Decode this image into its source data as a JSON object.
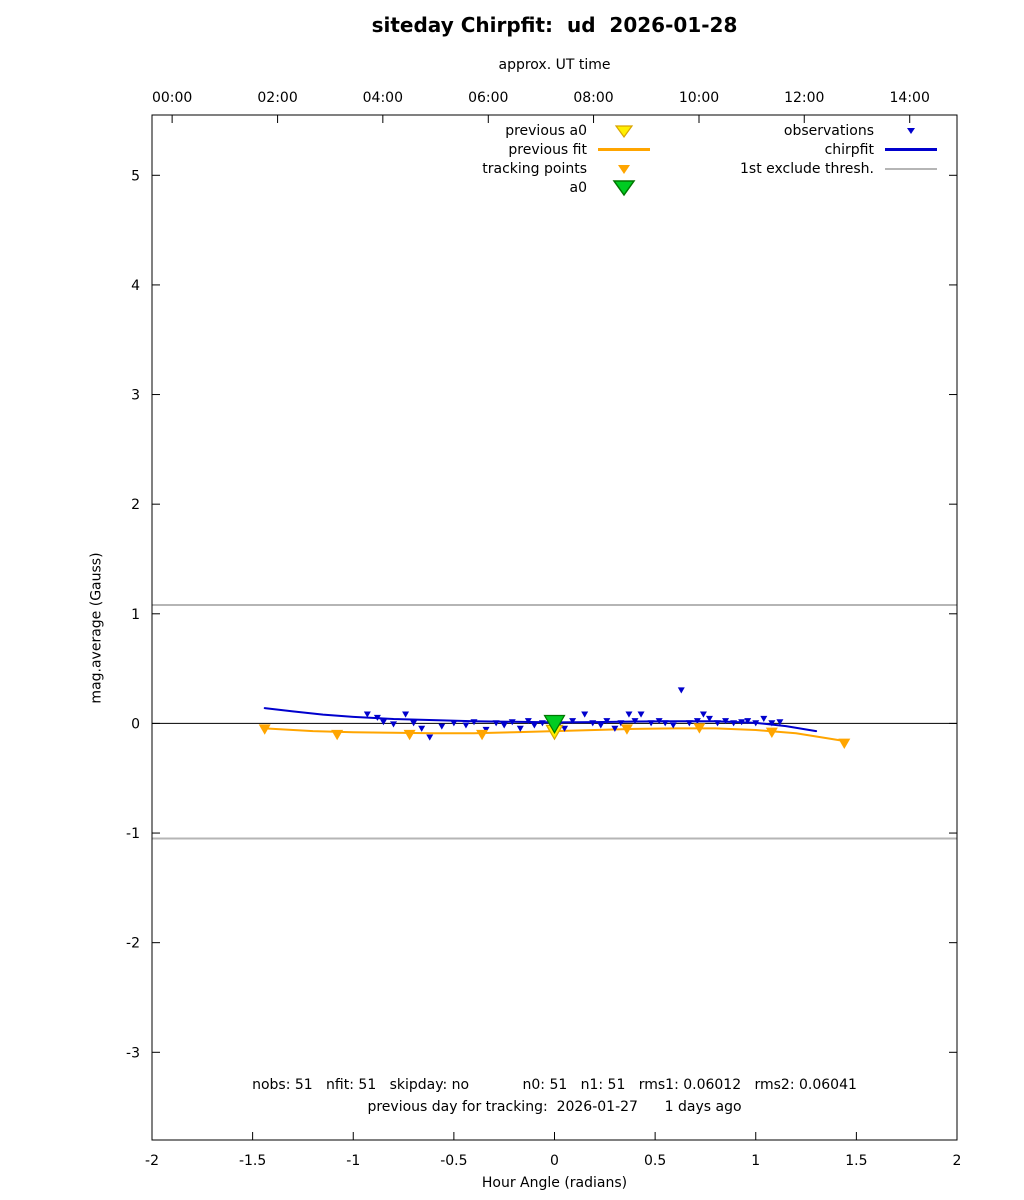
{
  "title": "siteday Chirpfit:  ud  2026-01-28",
  "colors": {
    "observations": "#0000cd",
    "chirpfit": "#0000cd",
    "previous_fit": "#ffa500",
    "tracking_points": "#ffa500",
    "previous_a0_fill": "#ffef00",
    "previous_a0_edge": "#d9a400",
    "a0_fill": "#00cc22",
    "a0_edge": "#007700",
    "exclude_threshold": "#b5b5b5",
    "axis": "#000000",
    "background": "#ffffff"
  },
  "legend": {
    "left": [
      {
        "label": "previous a0"
      },
      {
        "label": "previous fit"
      },
      {
        "label": "tracking points"
      },
      {
        "label": "a0"
      }
    ],
    "right": [
      {
        "label": "observations"
      },
      {
        "label": "chirpfit"
      },
      {
        "label": "1st exclude thresh."
      }
    ]
  },
  "footer": {
    "stats": "nobs: 51   nfit: 51   skipday: no            n0: 51   n1: 51   rms1: 0.06012   rms2: 0.06041",
    "previous_day": "previous day for tracking:  2026-01-27      1 days ago",
    "values": {
      "nobs": 51,
      "nfit": 51,
      "skipday": "no",
      "n0": 51,
      "n1": 51,
      "rms1": 0.06012,
      "rms2": 0.06041,
      "previous_day_date": "2026-01-27",
      "days_ago": "1 days ago"
    }
  },
  "chart_data": {
    "type": "scatter",
    "title": "siteday Chirpfit: ud 2026-01-28",
    "xlabel": "Hour Angle (radians)",
    "ylabel": "mag.average (Gauss)",
    "x2label": "approx. UT time",
    "xlim": [
      -2,
      2
    ],
    "ylim": [
      -3.8,
      5.55
    ],
    "grid": false,
    "legend_position": "top-inside",
    "x_ticks": [
      {
        "v": -2,
        "label": "-2"
      },
      {
        "v": -1.5,
        "label": "-1.5"
      },
      {
        "v": -1,
        "label": "-1"
      },
      {
        "v": -0.5,
        "label": "-0.5"
      },
      {
        "v": 0,
        "label": "0"
      },
      {
        "v": 0.5,
        "label": "0.5"
      },
      {
        "v": 1,
        "label": "1"
      },
      {
        "v": 1.5,
        "label": "1.5"
      },
      {
        "v": 2,
        "label": "2"
      }
    ],
    "y_ticks": [
      {
        "v": -3,
        "label": "-3"
      },
      {
        "v": -2,
        "label": "-2"
      },
      {
        "v": -1,
        "label": "-1"
      },
      {
        "v": 0,
        "label": "0"
      },
      {
        "v": 1,
        "label": "1"
      },
      {
        "v": 2,
        "label": "2"
      },
      {
        "v": 3,
        "label": "3"
      },
      {
        "v": 4,
        "label": "4"
      },
      {
        "v": 5,
        "label": "5"
      }
    ],
    "x2_ticks": [
      {
        "v": -1.9,
        "label": "00:00"
      },
      {
        "v": -1.376,
        "label": "02:00"
      },
      {
        "v": -0.853,
        "label": "04:00"
      },
      {
        "v": -0.329,
        "label": "06:00"
      },
      {
        "v": 0.194,
        "label": "08:00"
      },
      {
        "v": 0.718,
        "label": "10:00"
      },
      {
        "v": 1.241,
        "label": "12:00"
      },
      {
        "v": 1.765,
        "label": "14:00"
      }
    ],
    "exclude_thresholds": [
      1.08,
      -1.05
    ],
    "series": [
      {
        "name": "previous fit",
        "type": "line",
        "color_key": "previous_fit",
        "points": [
          [
            -1.44,
            -0.045
          ],
          [
            -1.2,
            -0.07
          ],
          [
            -1.0,
            -0.08
          ],
          [
            -0.8,
            -0.085
          ],
          [
            -0.6,
            -0.09
          ],
          [
            -0.4,
            -0.09
          ],
          [
            -0.2,
            -0.08
          ],
          [
            0,
            -0.07
          ],
          [
            0.2,
            -0.06
          ],
          [
            0.4,
            -0.05
          ],
          [
            0.6,
            -0.045
          ],
          [
            0.8,
            -0.045
          ],
          [
            1.0,
            -0.06
          ],
          [
            1.2,
            -0.09
          ],
          [
            1.44,
            -0.16
          ]
        ]
      },
      {
        "name": "chirpfit",
        "type": "line",
        "color_key": "chirpfit",
        "points": [
          [
            -1.44,
            0.14
          ],
          [
            -1.3,
            0.11
          ],
          [
            -1.15,
            0.08
          ],
          [
            -1.0,
            0.06
          ],
          [
            -0.8,
            0.04
          ],
          [
            -0.6,
            0.03
          ],
          [
            -0.4,
            0.02
          ],
          [
            -0.2,
            0.015
          ],
          [
            0,
            0.01
          ],
          [
            0.2,
            0.012
          ],
          [
            0.4,
            0.018
          ],
          [
            0.6,
            0.02
          ],
          [
            0.8,
            0.02
          ],
          [
            1.0,
            0.005
          ],
          [
            1.15,
            -0.025
          ],
          [
            1.3,
            -0.07
          ]
        ]
      },
      {
        "name": "observations",
        "type": "points",
        "color_key": "observations",
        "size": 3.5,
        "points": [
          [
            -0.93,
            0.09
          ],
          [
            -0.88,
            0.06
          ],
          [
            -0.85,
            0.02
          ],
          [
            -0.8,
            0.0
          ],
          [
            -0.74,
            0.09
          ],
          [
            -0.7,
            0.01
          ],
          [
            -0.66,
            -0.04
          ],
          [
            -0.62,
            -0.12
          ],
          [
            -0.56,
            -0.02
          ],
          [
            -0.5,
            0.01
          ],
          [
            -0.44,
            -0.01
          ],
          [
            -0.4,
            0.02
          ],
          [
            -0.34,
            -0.05
          ],
          [
            -0.29,
            0.01
          ],
          [
            -0.25,
            -0.01
          ],
          [
            -0.21,
            0.02
          ],
          [
            -0.17,
            -0.04
          ],
          [
            -0.13,
            0.03
          ],
          [
            -0.1,
            -0.01
          ],
          [
            -0.06,
            0.01
          ],
          [
            -0.02,
            0.04
          ],
          [
            0.02,
            -0.01
          ],
          [
            0.05,
            -0.04
          ],
          [
            0.09,
            0.03
          ],
          [
            0.15,
            0.09
          ],
          [
            0.19,
            0.01
          ],
          [
            0.23,
            -0.01
          ],
          [
            0.26,
            0.03
          ],
          [
            0.3,
            -0.04
          ],
          [
            0.33,
            0.01
          ],
          [
            0.37,
            0.09
          ],
          [
            0.4,
            0.03
          ],
          [
            0.43,
            0.09
          ],
          [
            0.48,
            0.01
          ],
          [
            0.52,
            0.03
          ],
          [
            0.55,
            0.01
          ],
          [
            0.59,
            -0.01
          ],
          [
            0.63,
            0.31
          ],
          [
            0.67,
            0.01
          ],
          [
            0.71,
            0.03
          ],
          [
            0.74,
            0.09
          ],
          [
            0.77,
            0.05
          ],
          [
            0.81,
            0.01
          ],
          [
            0.85,
            0.03
          ],
          [
            0.89,
            0.01
          ],
          [
            0.93,
            0.02
          ],
          [
            0.96,
            0.03
          ],
          [
            1.0,
            0.01
          ],
          [
            1.04,
            0.05
          ],
          [
            1.08,
            0.01
          ],
          [
            1.12,
            0.02
          ]
        ]
      },
      {
        "name": "tracking points",
        "type": "points",
        "color_key": "tracking_points",
        "size": 6,
        "points": [
          [
            -1.44,
            -0.04
          ],
          [
            -1.08,
            -0.09
          ],
          [
            -0.72,
            -0.09
          ],
          [
            -0.36,
            -0.09
          ],
          [
            0,
            -0.06
          ],
          [
            0.36,
            -0.04
          ],
          [
            0.72,
            -0.03
          ],
          [
            1.08,
            -0.07
          ],
          [
            1.44,
            -0.17
          ]
        ]
      },
      {
        "name": "previous a0",
        "type": "points",
        "color_key": "previous_a0_fill",
        "edge_key": "previous_a0_edge",
        "size": 8,
        "points": [
          [
            0,
            -0.06
          ]
        ]
      },
      {
        "name": "a0",
        "type": "points",
        "color_key": "a0_fill",
        "edge_key": "a0_edge",
        "size": 10,
        "points": [
          [
            0,
            0.02
          ]
        ]
      }
    ]
  }
}
